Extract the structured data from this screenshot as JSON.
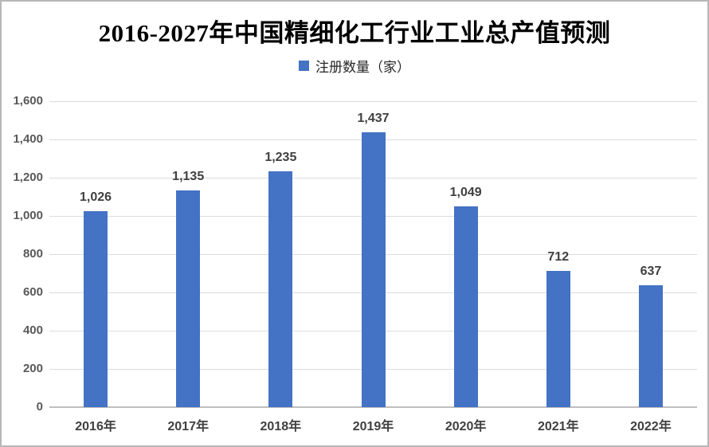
{
  "figure": {
    "title": "2016-2027年中国精细化工行业工业总产值预测",
    "legend": {
      "label": "注册数量（家）",
      "marker_color": "#4472C4"
    }
  },
  "chart_data": {
    "type": "bar",
    "title": "2016-2027年中国精细化工行业工业总产值预测",
    "legend_entries": [
      "注册数量（家）"
    ],
    "legend_position": "top",
    "categories": [
      "2016年",
      "2017年",
      "2018年",
      "2019年",
      "2020年",
      "2021年",
      "2022年"
    ],
    "series": [
      {
        "name": "注册数量（家）",
        "values": [
          1026,
          1135,
          1235,
          1437,
          1049,
          712,
          637
        ],
        "value_labels": [
          "1,026",
          "1,135",
          "1,235",
          "1,437",
          "1,049",
          "712",
          "637"
        ]
      }
    ],
    "xlabel": "",
    "ylabel": "",
    "ylim": [
      0,
      1600
    ],
    "y_tick_step": 200,
    "y_tick_labels": [
      "0",
      "200",
      "400",
      "600",
      "800",
      "1,000",
      "1,200",
      "1,400",
      "1,600"
    ],
    "grid": true,
    "data_labels": true,
    "bar_color": "#4472C4"
  },
  "colors": {
    "accent": "#4472C4",
    "gridline": "#dcdcdc",
    "axis_line": "#bfbfbf",
    "axis_label": "#595959",
    "data_label": "#404040",
    "title": "#000000",
    "border": "#b7b7b7",
    "background": "#ffffff"
  }
}
